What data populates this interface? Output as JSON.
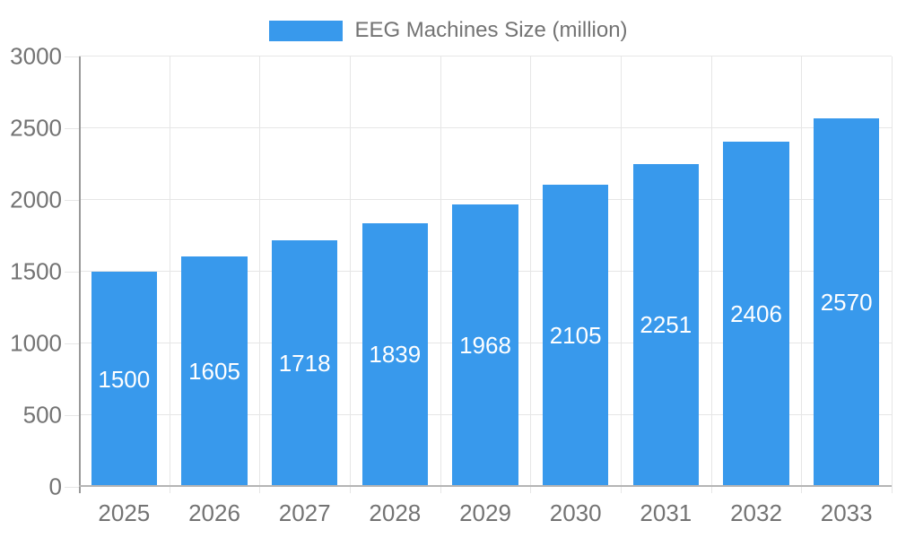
{
  "legend": {
    "label": "EEG Machines Size (million)"
  },
  "colors": {
    "bar": "#3899EC",
    "grid": "#E6E6E6",
    "axis": "#999999",
    "baseline": "#B5B5B5",
    "text": "#737373",
    "value_label": "#FFFFFF",
    "background": "#FFFFFF"
  },
  "chart_data": {
    "type": "bar",
    "title": "EEG Machines Size (million)",
    "categories": [
      "2025",
      "2026",
      "2027",
      "2028",
      "2029",
      "2030",
      "2031",
      "2032",
      "2033"
    ],
    "values": [
      1500,
      1605,
      1718,
      1839,
      1968,
      2105,
      2251,
      2406,
      2570
    ],
    "xlabel": "",
    "ylabel": "",
    "ylim": [
      0,
      3000
    ],
    "ytick_step": 500,
    "ytick_labels": [
      "0",
      "500",
      "1000",
      "1500",
      "2000",
      "2500",
      "3000"
    ],
    "grid": true,
    "legend_position": "top",
    "value_labels": "inside-center",
    "bar_fraction": 0.727
  }
}
